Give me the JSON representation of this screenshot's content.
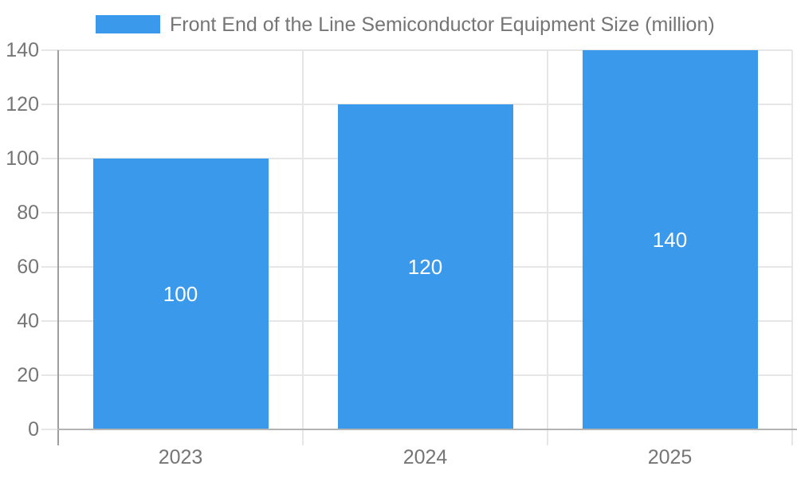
{
  "chart_data": {
    "type": "bar",
    "title": "",
    "legend": {
      "label": "Front End of the Line Semiconductor Equipment Size (million)",
      "position": "top"
    },
    "categories": [
      "2023",
      "2024",
      "2025"
    ],
    "series": [
      {
        "name": "Front End of the Line Semiconductor Equipment Size (million)",
        "values": [
          100,
          120,
          140
        ],
        "data_labels": [
          "100",
          "120",
          "140"
        ],
        "color": "#3B99EC"
      }
    ],
    "xlabel": "",
    "ylabel": "",
    "ylim": [
      0,
      140
    ],
    "y_ticks": [
      0,
      20,
      40,
      60,
      80,
      100,
      120,
      140
    ],
    "y_tick_labels": [
      "0",
      "20",
      "40",
      "60",
      "80",
      "100",
      "120",
      "140"
    ],
    "grid": true
  },
  "colors": {
    "bar": "#3B99EC",
    "axis_text": "#757575",
    "legend_text": "#757575",
    "gridline": "#E6E6E6",
    "x_axis_line": "#B3B3B3",
    "y_axis_line": "#9E9E9E",
    "data_label": "#FFFFFF",
    "background": "#FFFFFF"
  }
}
